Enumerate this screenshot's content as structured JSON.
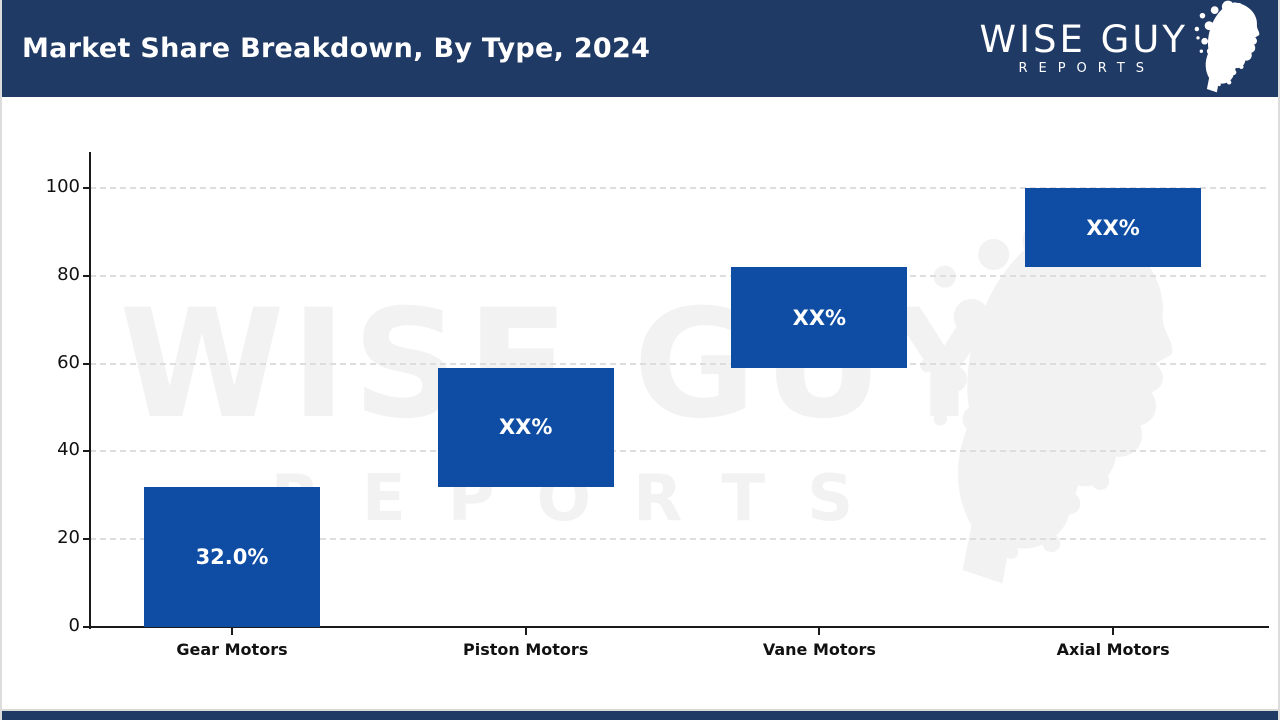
{
  "header": {
    "title": "Market Share Breakdown, By Type, 2024",
    "logo": {
      "line1": "WISE GUY",
      "line2": "REPORTS"
    }
  },
  "watermark": {
    "line1": "WISE GUY",
    "line2": "REPORTS"
  },
  "colors": {
    "header_bg": "#203a66",
    "footer_bg": "#203a66",
    "bar": "#0e4da3",
    "grid": "#dddddd",
    "watermark": "#f2f2f2",
    "bar_label": "#ffffff"
  },
  "chart_data": {
    "type": "bar",
    "subtype": "waterfall",
    "title": "Market Share Breakdown, By Type, 2024",
    "categories": [
      "Gear Motors",
      "Piston Motors",
      "Vane Motors",
      "Axial Motors"
    ],
    "series": [
      {
        "name": "Market Share %",
        "starts": [
          0,
          32,
          59,
          82
        ],
        "ends": [
          32,
          59,
          82,
          100
        ]
      }
    ],
    "bar_labels": [
      "32.0%",
      "XX%",
      "XX%",
      "XX%"
    ],
    "xlabel": "",
    "ylabel": "",
    "ylim": [
      0,
      100
    ],
    "yticks": [
      0,
      20,
      40,
      60,
      80,
      100
    ],
    "grid": "horizontal-dashed",
    "legend": "none"
  }
}
